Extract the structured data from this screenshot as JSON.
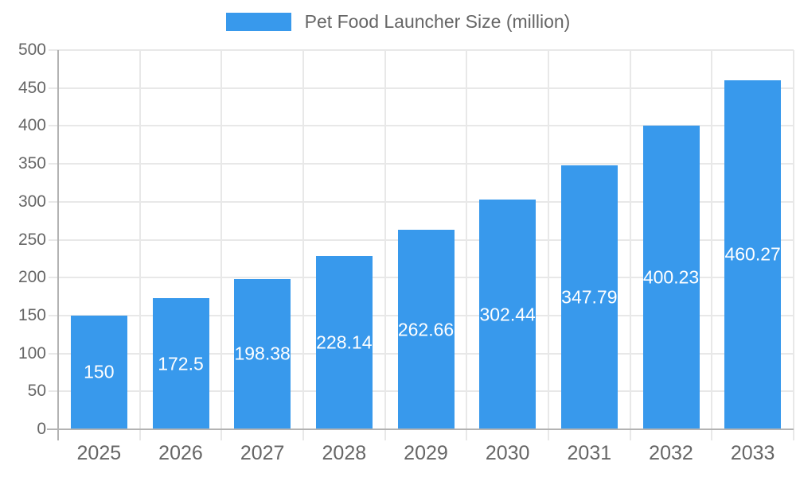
{
  "legend": {
    "label": "Pet Food Launcher Size (million)"
  },
  "colors": {
    "bar": "#3899ec",
    "legend_text": "#666666",
    "axis_text": "#666666",
    "grid": "#e8e8e8",
    "axis_line": "#b3b3b3",
    "value_label": "#ffffff",
    "background": "#ffffff"
  },
  "chart_data": {
    "type": "bar",
    "title": "Pet Food Launcher Size (million)",
    "categories": [
      "2025",
      "2026",
      "2027",
      "2028",
      "2029",
      "2030",
      "2031",
      "2032",
      "2033"
    ],
    "series": [
      {
        "name": "Pet Food Launcher Size (million)",
        "values": [
          150,
          172.5,
          198.38,
          228.14,
          262.66,
          302.44,
          347.79,
          400.23,
          460.27
        ]
      }
    ],
    "value_labels_shown": true,
    "value_label_position": "inside-center",
    "xlabel": "",
    "ylabel": "",
    "ylim": [
      0,
      500
    ],
    "ytick_step": 50,
    "yticks": [
      0,
      50,
      100,
      150,
      200,
      250,
      300,
      350,
      400,
      450,
      500
    ],
    "grid": "horizontal-and-category-boundaries",
    "legend_position": "top-center"
  }
}
